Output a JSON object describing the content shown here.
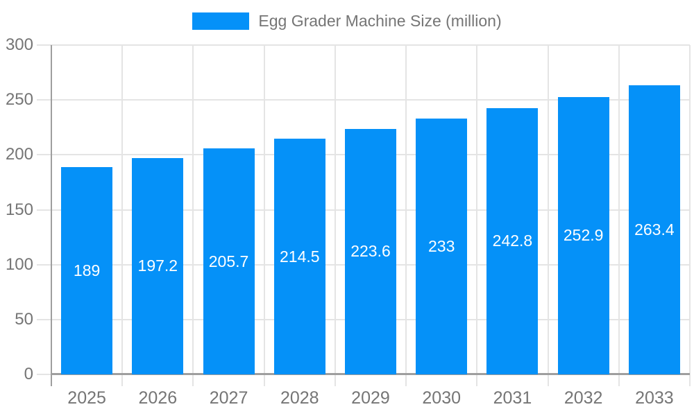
{
  "legend": {
    "label": "Egg Grader Machine Size (million)"
  },
  "chart_data": {
    "type": "bar",
    "title": "Egg Grader Machine Size (million)",
    "categories": [
      "2025",
      "2026",
      "2027",
      "2028",
      "2029",
      "2030",
      "2031",
      "2032",
      "2033"
    ],
    "values": [
      189,
      197.2,
      205.7,
      214.5,
      223.6,
      233,
      242.8,
      252.9,
      263.4
    ],
    "xlabel": "",
    "ylabel": "",
    "ylim": [
      0,
      300
    ],
    "yticks": [
      0,
      50,
      100,
      150,
      200,
      250,
      300
    ],
    "grid": true,
    "legend_position": "top",
    "colors": {
      "bar": "#0591f8",
      "axis_line": "#9e9e9e",
      "gridline": "#e4e4e4",
      "axis_text": "#757575",
      "value_label": "#ffffff",
      "background": "#ffffff"
    }
  }
}
